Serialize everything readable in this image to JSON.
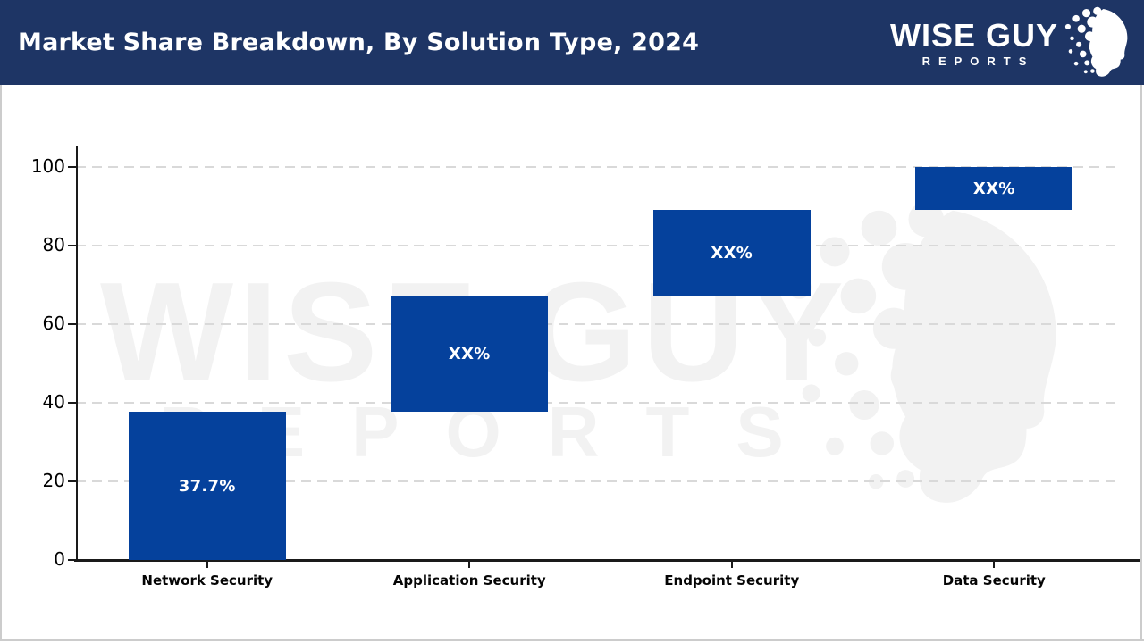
{
  "header": {
    "title": "Market Share Breakdown, By Solution Type, 2024",
    "logo": {
      "line1": "WISE GUY",
      "line2": "REPORTS"
    }
  },
  "watermark": {
    "line1": "WISE GUY",
    "line2": "REPORTS"
  },
  "colors": {
    "header_bg": "#1e3565",
    "bar": "#05419c",
    "grid": "#d9d9d9",
    "axis": "#1a1a1a",
    "watermark": "#f2f2f2",
    "bar_label": "#ffffff",
    "frame": "#cccccc"
  },
  "chart_data": {
    "type": "bar",
    "subtype": "waterfall",
    "title": "Market Share Breakdown, By Solution Type, 2024",
    "categories": [
      "Network Security",
      "Application Security",
      "Endpoint Security",
      "Data Security"
    ],
    "segments": [
      {
        "category": "Network Security",
        "start": 0,
        "end": 37.7,
        "label": "37.7%"
      },
      {
        "category": "Application Security",
        "start": 37.7,
        "end": 67,
        "label": "XX%"
      },
      {
        "category": "Endpoint Security",
        "start": 67,
        "end": 89,
        "label": "XX%"
      },
      {
        "category": "Data Security",
        "start": 89,
        "end": 100,
        "label": "XX%"
      }
    ],
    "y_ticks": [
      0,
      20,
      40,
      60,
      80,
      100
    ],
    "ylim": [
      0,
      105
    ],
    "xlabel": "",
    "ylabel": "",
    "grid": "dashed-horizontal",
    "legend": "none",
    "bar_color": "#05419c"
  }
}
